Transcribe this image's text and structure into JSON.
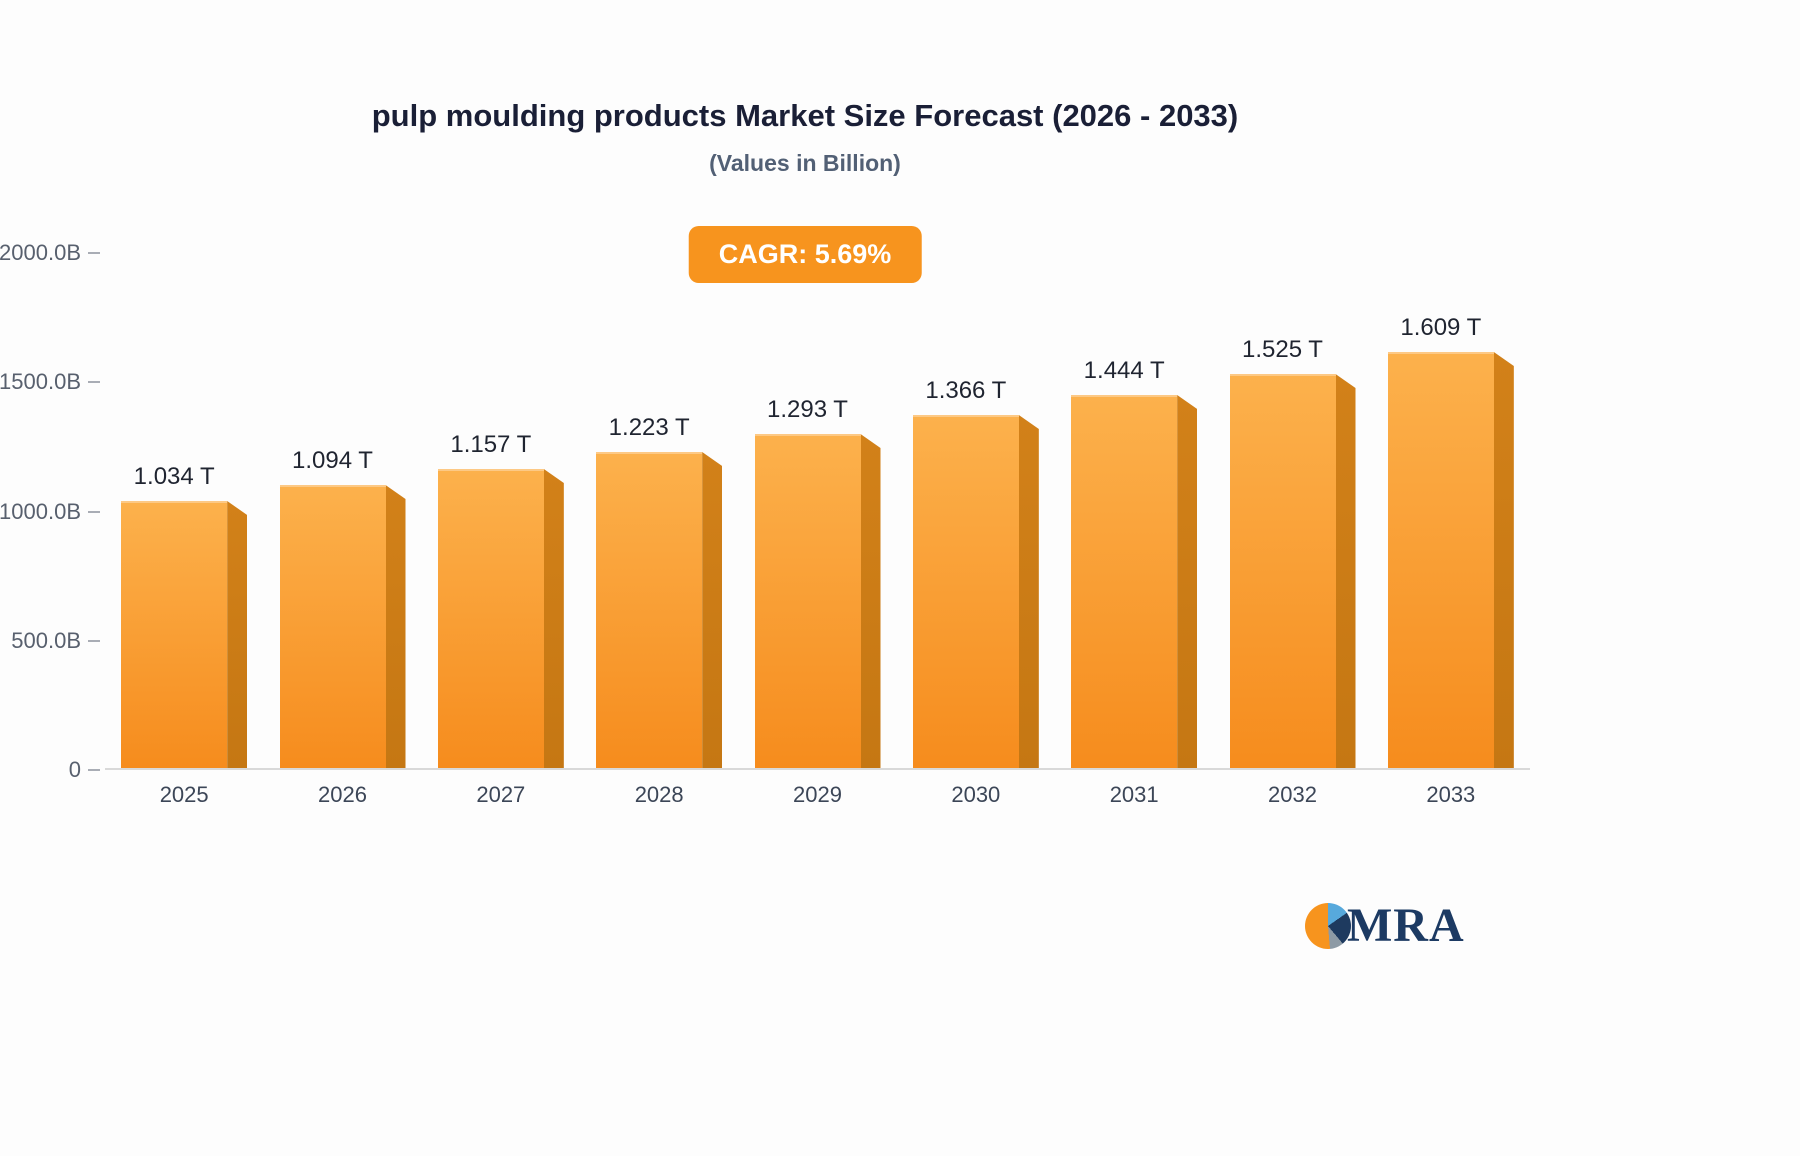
{
  "header": {
    "title": "pulp moulding products Market Size Forecast (2026 - 2033)",
    "subtitle": "(Values in Billion)"
  },
  "badge": {
    "label": "CAGR: 5.69%",
    "background": "#f7941e",
    "text_color": "#ffffff"
  },
  "chart_data": {
    "type": "bar",
    "title": "pulp moulding products Market Size Forecast (2026 - 2033)",
    "subtitle": "(Values in Billion)",
    "categories": [
      "2025",
      "2026",
      "2027",
      "2028",
      "2029",
      "2030",
      "2031",
      "2032",
      "2033"
    ],
    "values_billion": [
      1034,
      1094,
      1157,
      1223,
      1293,
      1366,
      1444,
      1525,
      1609
    ],
    "value_labels": [
      "1.034 T",
      "1.094 T",
      "1.157 T",
      "1.223 T",
      "1.293 T",
      "1.366 T",
      "1.444 T",
      "1.525 T",
      "1.609 T"
    ],
    "xlabel": "",
    "ylabel": "",
    "ylim": [
      0,
      2000
    ],
    "y_ticks": [
      {
        "value": 2000,
        "label": "2000.0B"
      },
      {
        "value": 1500,
        "label": "1500.0B"
      },
      {
        "value": 1000,
        "label": "1000.0B"
      },
      {
        "value": 500,
        "label": "500.0B"
      },
      {
        "value": 0,
        "label": "0"
      }
    ],
    "grid": false,
    "legend": false,
    "bar_color_top": "#fcb14c",
    "bar_color_bottom": "#f68c1d",
    "bar_side_color": "#c57713"
  },
  "logo": {
    "text": "MRA",
    "accent_orange": "#f7941e",
    "navy": "#1c3a63",
    "light_blue": "#57a9dc"
  }
}
